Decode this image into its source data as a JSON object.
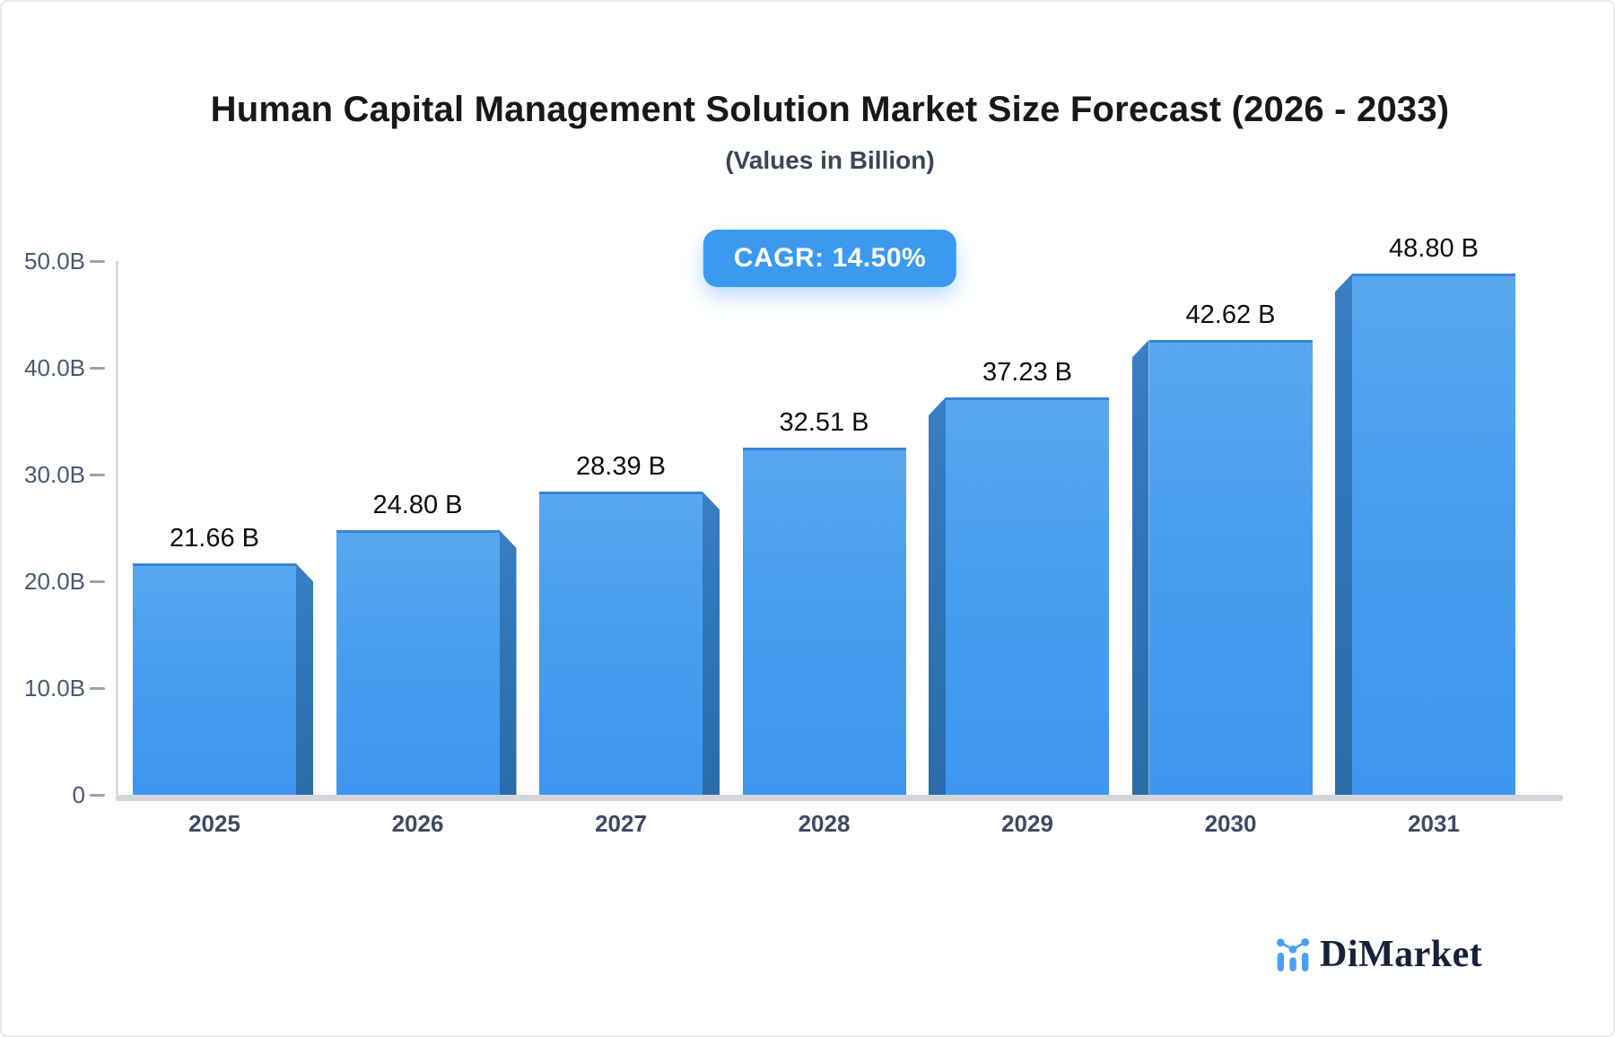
{
  "header": {
    "title": "Human Capital Management Solution Market Size Forecast (2026 - 2033)",
    "subtitle": "(Values in Billion)",
    "cagr_label": "CAGR: 14.50%"
  },
  "brand": {
    "name": "DiMarket",
    "icon": "mini-bar-chart-logo"
  },
  "colors": {
    "bar_face_top": "#58a7ef",
    "bar_face_bottom": "#3e96f0",
    "bar_top_edge": "#3a83d8",
    "bar_side": "#2f76ba",
    "badge_bg": "#3b9af0",
    "badge_text": "#ffffff",
    "y_axis_text": "#4c5870",
    "x_axis_text": "#3e4a61",
    "baseline_gray": "#d3d5da",
    "logo_blue": "#4aa0f5",
    "logo_text": "#16223b"
  },
  "chart_data": {
    "type": "bar",
    "title": "Human Capital Management Solution Market Size Forecast (2026 - 2033)",
    "subtitle": "(Values in Billion)",
    "cagr": "CAGR: 14.50%",
    "categories": [
      "2025",
      "2026",
      "2027",
      "2028",
      "2029",
      "2030",
      "2031"
    ],
    "values": [
      21.66,
      24.8,
      28.39,
      32.51,
      37.23,
      42.62,
      48.8
    ],
    "value_labels": [
      "21.66 B",
      "24.80 B",
      "28.39 B",
      "32.51 B",
      "37.23 B",
      "42.62 B",
      "48.80 B"
    ],
    "unit": "Billion",
    "ylim": [
      0,
      50
    ],
    "ytick_values": [
      50,
      40,
      30,
      20,
      10,
      0
    ],
    "ytick_labels": [
      "50.0B",
      "40.0B",
      "30.0B",
      "20.0B",
      "10.0B",
      "0"
    ],
    "grid": false,
    "legend_position": "none",
    "style": "3d-perspective-bars"
  }
}
